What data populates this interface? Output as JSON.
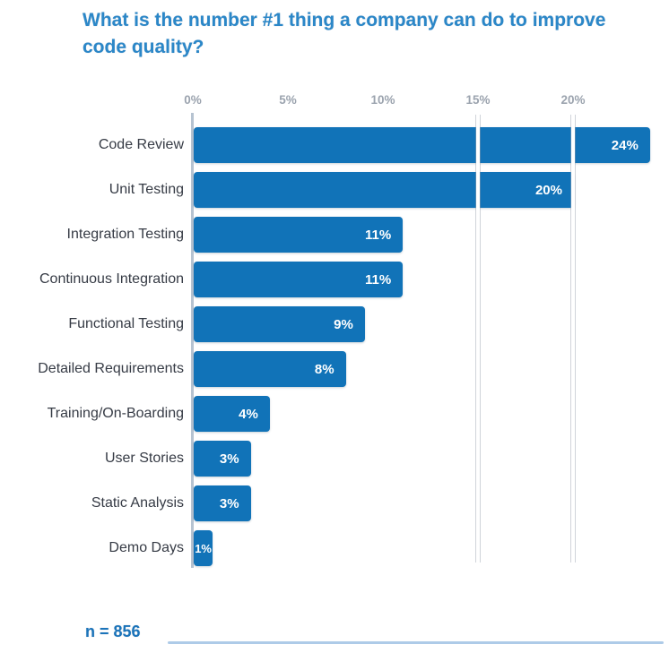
{
  "title": "What is the number #1 thing a company can do to improve code quality?",
  "chart_data": {
    "type": "bar",
    "orientation": "horizontal",
    "title": "What is the number #1 thing a company can do to improve code quality?",
    "categories": [
      "Code Review",
      "Unit Testing",
      "Integration Testing",
      "Continuous Integration",
      "Functional Testing",
      "Detailed Requirements",
      "Training/On-Boarding",
      "User Stories",
      "Static Analysis",
      "Demo Days"
    ],
    "values": [
      24,
      20,
      11,
      11,
      9,
      8,
      4,
      3,
      3,
      1
    ],
    "value_labels": [
      "24%",
      "20%",
      "11%",
      "11%",
      "9%",
      "8%",
      "4%",
      "3%",
      "3%",
      "1%"
    ],
    "x_ticks": [
      "0%",
      "5%",
      "10%",
      "15%",
      "20%"
    ],
    "x_tick_values": [
      0,
      5,
      10,
      15,
      20
    ],
    "xlim": [
      0,
      25
    ],
    "gridlines_at": [
      15,
      20
    ],
    "legend": "none",
    "xlabel": "",
    "ylabel": ""
  },
  "footer": {
    "n_label": "n = 856"
  },
  "colors": {
    "title_text": "#2b87c8",
    "bar_fill": "#1173b8",
    "value_label": "#ffffff",
    "tick_label": "#9ba3ae",
    "category_label": "#363b45",
    "axis_line": "#b6c3d1",
    "gridline": "#ffffff",
    "footer_text": "#1b74ba",
    "footer_line": "#aecbe8"
  }
}
